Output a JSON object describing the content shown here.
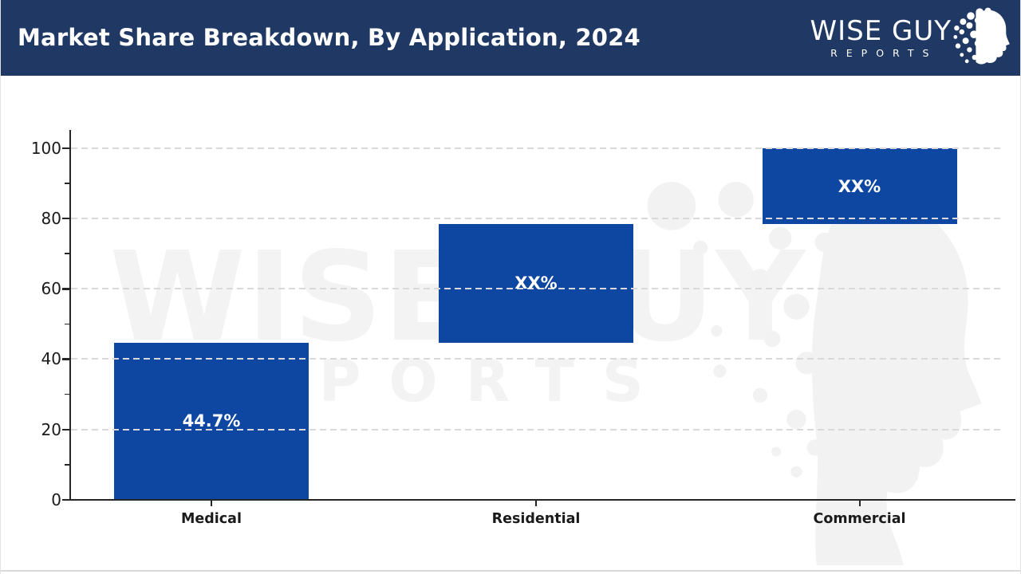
{
  "page": {
    "header_bg": "#1f3864",
    "axis_color": "#262626",
    "grid_color": "#d9d9d9",
    "watermark_color": "#f3f3f3",
    "bottom_line_color": "#d9d9d9"
  },
  "header": {
    "title": "Market Share Breakdown, By Application, 2024",
    "logo_line1": "WISE GUY",
    "logo_line2": "REPORTS"
  },
  "watermark": {
    "line1": "WISE GUY",
    "line2": "REPORTS"
  },
  "chart_data": {
    "type": "bar",
    "subtype": "waterfall-breakdown",
    "title": "Market Share Breakdown, By Application, 2024",
    "categories": [
      "Medical",
      "Residential",
      "Commercial"
    ],
    "series": [
      {
        "name": "Market share (%)",
        "segments": [
          {
            "category": "Medical",
            "start": 0,
            "end": 44.7,
            "label": "44.7%"
          },
          {
            "category": "Residential",
            "start": 44.7,
            "end": 78.4,
            "label": "XX%"
          },
          {
            "category": "Commercial",
            "start": 78.4,
            "end": 100,
            "label": "XX%"
          }
        ]
      }
    ],
    "xlabel": "",
    "ylabel": "",
    "ylim": [
      0,
      105
    ],
    "yticks": [
      0,
      20,
      40,
      60,
      80,
      100
    ],
    "minor_ticks": [
      10,
      30,
      50,
      70,
      90
    ],
    "grid": "horizontal-dashed",
    "legend": "none",
    "bar_color": "#0d47a1",
    "bar_label_color": "#ffffff"
  }
}
